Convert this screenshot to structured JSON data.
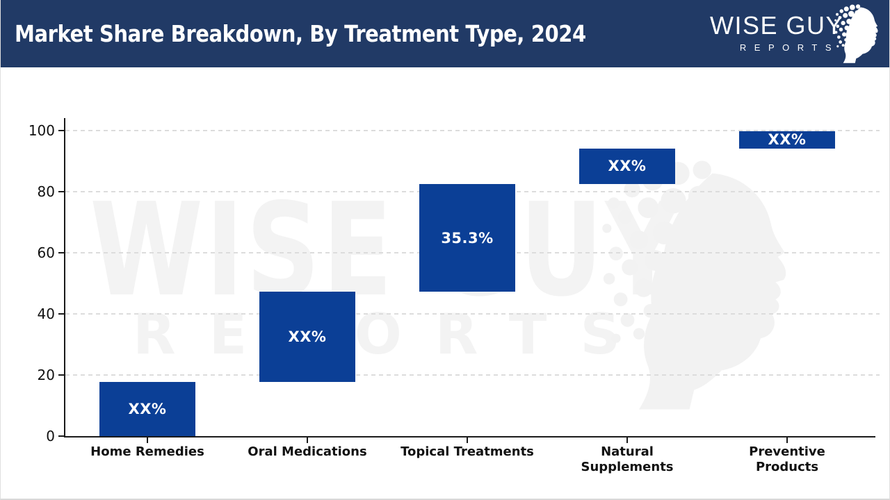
{
  "header": {
    "title": "Market Share Breakdown, By Treatment Type, 2024",
    "logo": {
      "line1": "WISE GUY",
      "line2": "REPORTS"
    }
  },
  "watermark": {
    "line1": "WISE GUY",
    "line2": "REPORTS"
  },
  "chart_data": {
    "type": "bar",
    "subtype": "waterfall",
    "title": "Market Share Breakdown, By Treatment Type, 2024",
    "categories": [
      "Home Remedies",
      "Oral Medications",
      "Topical Treatments",
      "Natural Supplements",
      "Preventive Products"
    ],
    "tick_label_lines": [
      [
        "Home Remedies"
      ],
      [
        "Oral Medications"
      ],
      [
        "Topical Treatments"
      ],
      [
        "Natural",
        "Supplements"
      ],
      [
        "Preventive",
        "Products"
      ]
    ],
    "segments": [
      {
        "category": "Home Remedies",
        "start": 0,
        "end": 17.7,
        "label": "XX%"
      },
      {
        "category": "Oral Medications",
        "start": 17.7,
        "end": 47.2,
        "label": "XX%"
      },
      {
        "category": "Topical Treatments",
        "start": 47.2,
        "end": 82.5,
        "label": "35.3%"
      },
      {
        "category": "Natural Supplements",
        "start": 82.5,
        "end": 94.2,
        "label": "XX%"
      },
      {
        "category": "Preventive Products",
        "start": 94.2,
        "end": 99.8,
        "label": "XX%"
      }
    ],
    "yticks": [
      0,
      20,
      40,
      60,
      80,
      100
    ],
    "ylim": [
      0,
      104
    ],
    "xlabel": "",
    "ylabel": "",
    "grid": "horizontal-dashed",
    "legend": "none",
    "bar_color": "#0b3f96",
    "bar_label_color": "#ffffff",
    "axis_color": "#1a1a1a",
    "grid_color": "#dcdcdc"
  },
  "colors": {
    "header_bg": "#213a66",
    "bar": "#0b3f96",
    "watermark": "#f3f3f3",
    "page_bg": "#ffffff"
  }
}
